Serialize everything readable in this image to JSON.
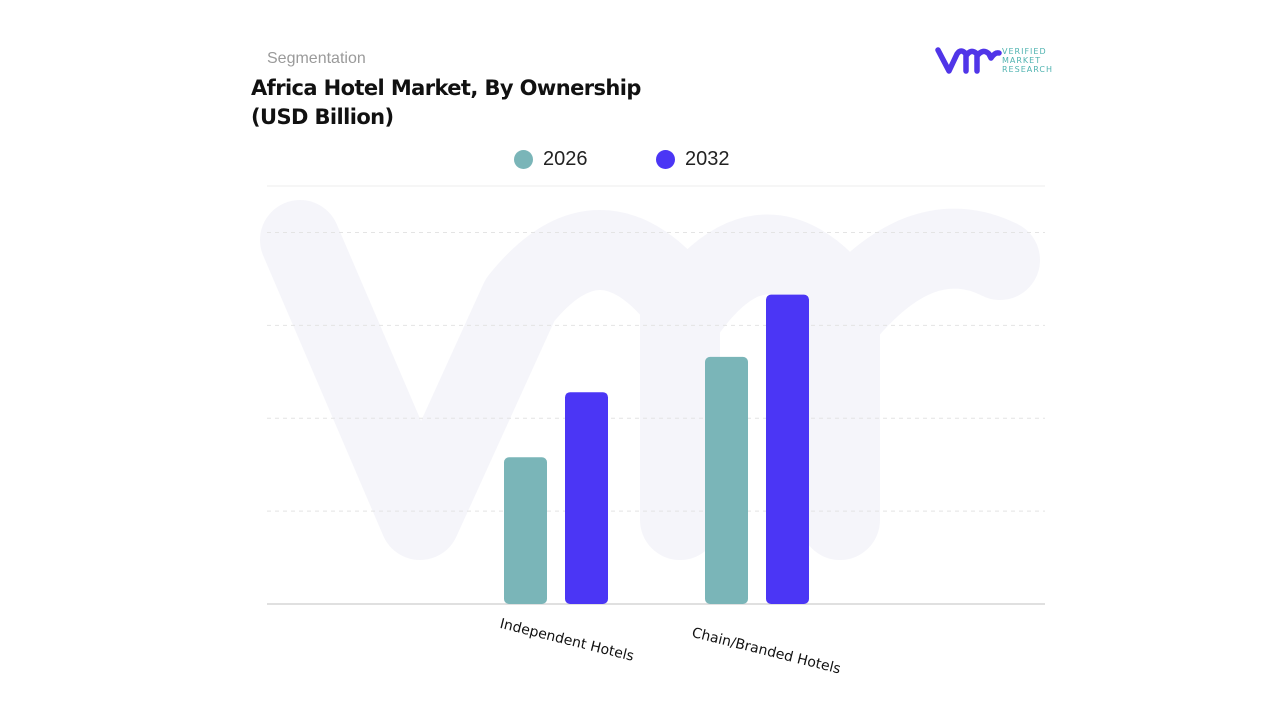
{
  "header": {
    "kicker": "Segmentation",
    "title_line1": "Africa Hotel Market, By Ownership",
    "title_line2": "(USD Billion)"
  },
  "logo": {
    "text": "VERIFIED MARKET RESEARCH",
    "line1": "VERIFIED",
    "line2": "MARKET",
    "line3": "RESEARCH",
    "mark_color": "#5035e8",
    "text_color": "#4fb3b0"
  },
  "chart_data": {
    "type": "bar",
    "title": "Africa Hotel Market, By Ownership (USD Billion)",
    "categories": [
      "Independent Hotels",
      "Chain/Branded Hotels"
    ],
    "series": [
      {
        "name": "2026",
        "color": "#7ab5b8",
        "values": [
          1.58,
          2.66
        ]
      },
      {
        "name": "2032",
        "color": "#4b36f5",
        "values": [
          2.28,
          3.33
        ]
      }
    ],
    "ylim": [
      0,
      4.5
    ],
    "gridlines": [
      1,
      2,
      3,
      4
    ],
    "grid": true,
    "y_axis_labels_shown": false,
    "legend_position": "top-center",
    "xlabel": "",
    "ylabel": ""
  }
}
